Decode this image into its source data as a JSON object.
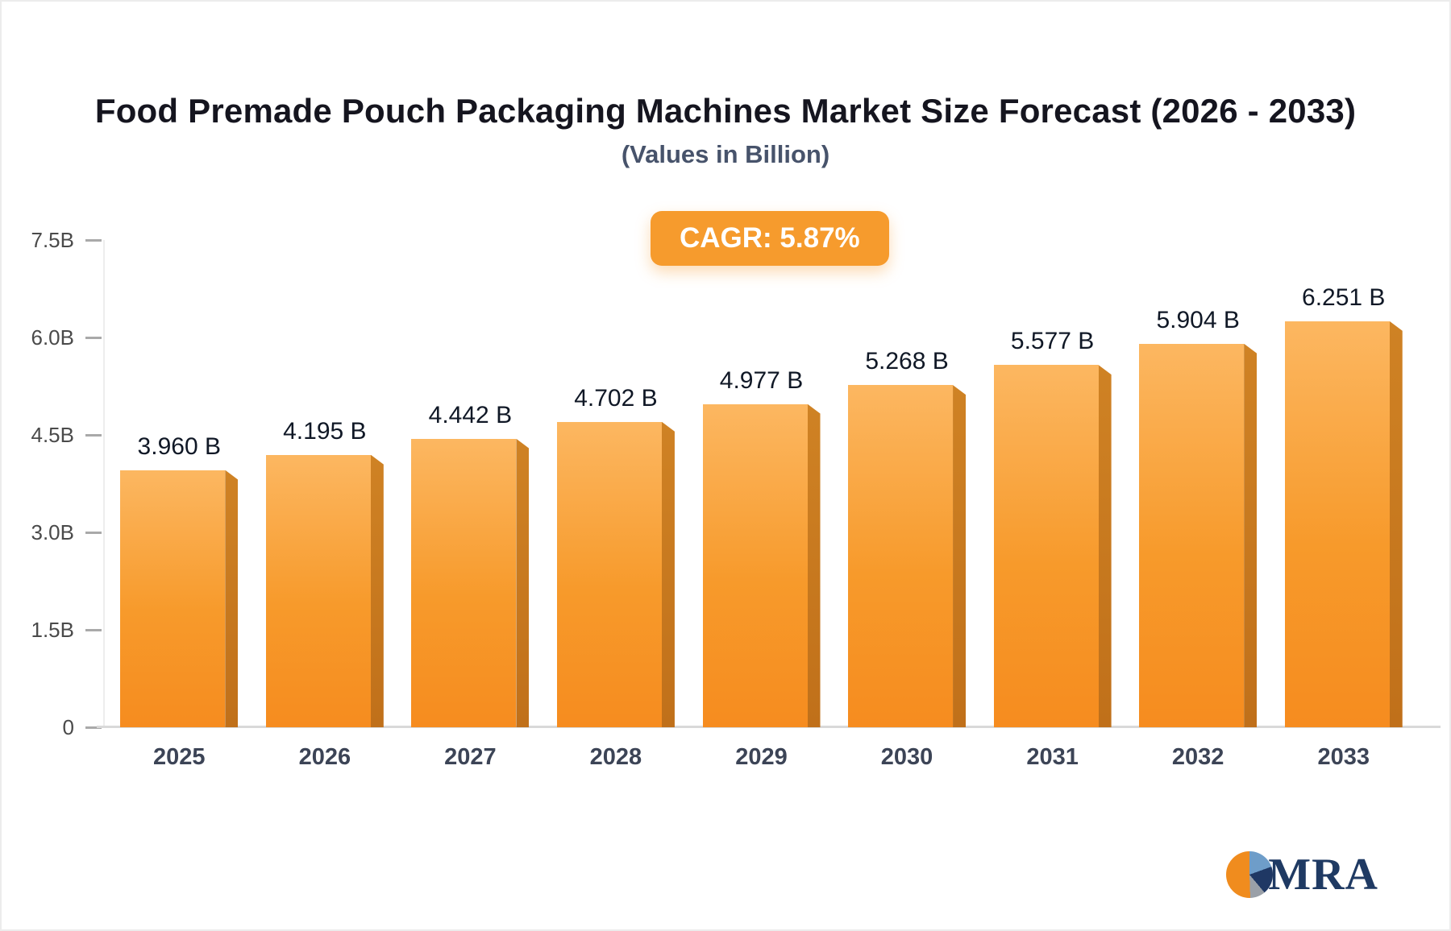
{
  "page": {
    "title": "Food Premade Pouch Packaging Machines Market Size Forecast (2026 - 2033)",
    "subtitle": "(Values in Billion)",
    "cagr_label": "CAGR: 5.87%",
    "logo_text": "MRA"
  },
  "chart_data": {
    "type": "bar",
    "title": "Food Premade Pouch Packaging Machines Market Size Forecast (2026 - 2033)",
    "subtitle": "(Values in Billion)",
    "cagr": "5.87%",
    "categories": [
      "2025",
      "2026",
      "2027",
      "2028",
      "2029",
      "2030",
      "2031",
      "2032",
      "2033"
    ],
    "values": [
      3.96,
      4.195,
      4.442,
      4.702,
      4.977,
      5.268,
      5.577,
      5.904,
      6.251
    ],
    "value_labels": [
      "3.960 B",
      "4.195 B",
      "4.442 B",
      "4.702 B",
      "4.977 B",
      "5.268 B",
      "5.577 B",
      "5.904 B",
      "6.251 B"
    ],
    "xlabel": "",
    "ylabel": "",
    "ylim": [
      0,
      7.5
    ],
    "yticks": [
      {
        "value": 7.5,
        "label": "7.5B"
      },
      {
        "value": 6.0,
        "label": "6.0B"
      },
      {
        "value": 4.5,
        "label": "4.5B"
      },
      {
        "value": 3.0,
        "label": "3.0B"
      },
      {
        "value": 1.5,
        "label": "1.5B"
      },
      {
        "value": 0,
        "label": "0"
      }
    ],
    "grid": false,
    "legend": false,
    "bar_color_top": "#fcb761",
    "bar_color_bottom": "#f68c1f",
    "bar_side_color": "#c0701a",
    "accent_color": "#f69b2d"
  }
}
